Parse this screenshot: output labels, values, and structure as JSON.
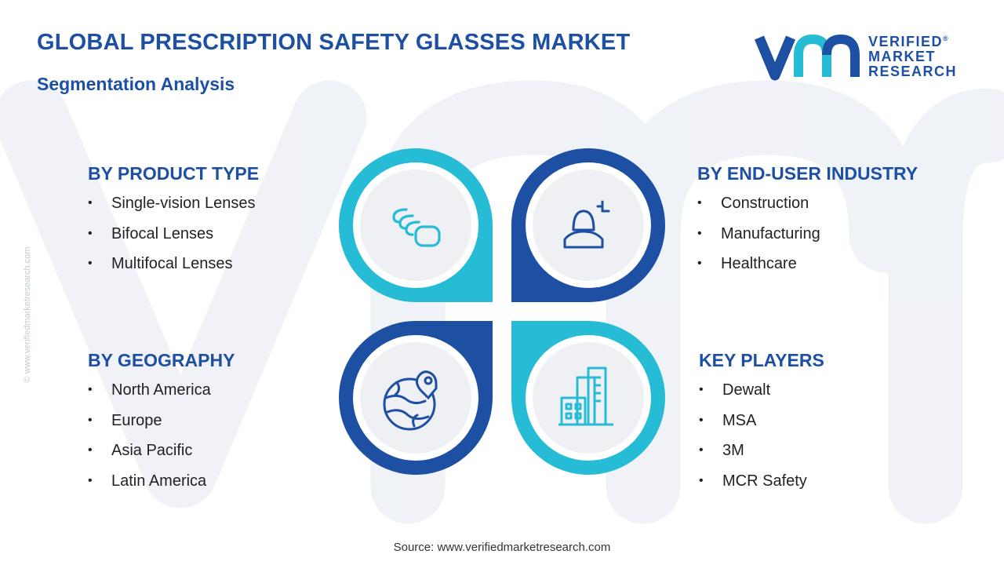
{
  "header": {
    "title": "GLOBAL PRESCRIPTION SAFETY GLASSES MARKET",
    "subtitle": "Segmentation Analysis"
  },
  "logo": {
    "line1": "VERIFIED",
    "line2": "MARKET",
    "line3": "RESEARCH",
    "registered": "®"
  },
  "side_copyright": "© www.verifiedmarketresearch.com",
  "segments": {
    "product_type": {
      "heading": "BY PRODUCT TYPE",
      "items": [
        "Single-vision  Lenses",
        "Bifocal Lenses",
        "Multifocal Lenses"
      ]
    },
    "end_user": {
      "heading": "BY END-USER INDUSTRY",
      "items": [
        "Construction",
        "Manufacturing",
        "Healthcare"
      ]
    },
    "geography": {
      "heading": "BY GEOGRAPHY",
      "items": [
        "North America",
        "Europe",
        "Asia Pacific",
        "Latin America"
      ]
    },
    "key_players": {
      "heading": "KEY PLAYERS",
      "items": [
        "Dewalt",
        "MSA",
        "3M",
        "MCR Safety"
      ]
    }
  },
  "icons": {
    "top_left": "layered-lenses-icon",
    "top_right": "user-profile-icon",
    "bottom_left": "globe-location-icon",
    "bottom_right": "city-buildings-icon"
  },
  "colors": {
    "primary_blue": "#1d4fa3",
    "accent_cyan": "#27bcd6",
    "circle_fill": "#eef0f4",
    "bullet_text": "#222222"
  },
  "source": "Source: www.verifiedmarketresearch.com"
}
